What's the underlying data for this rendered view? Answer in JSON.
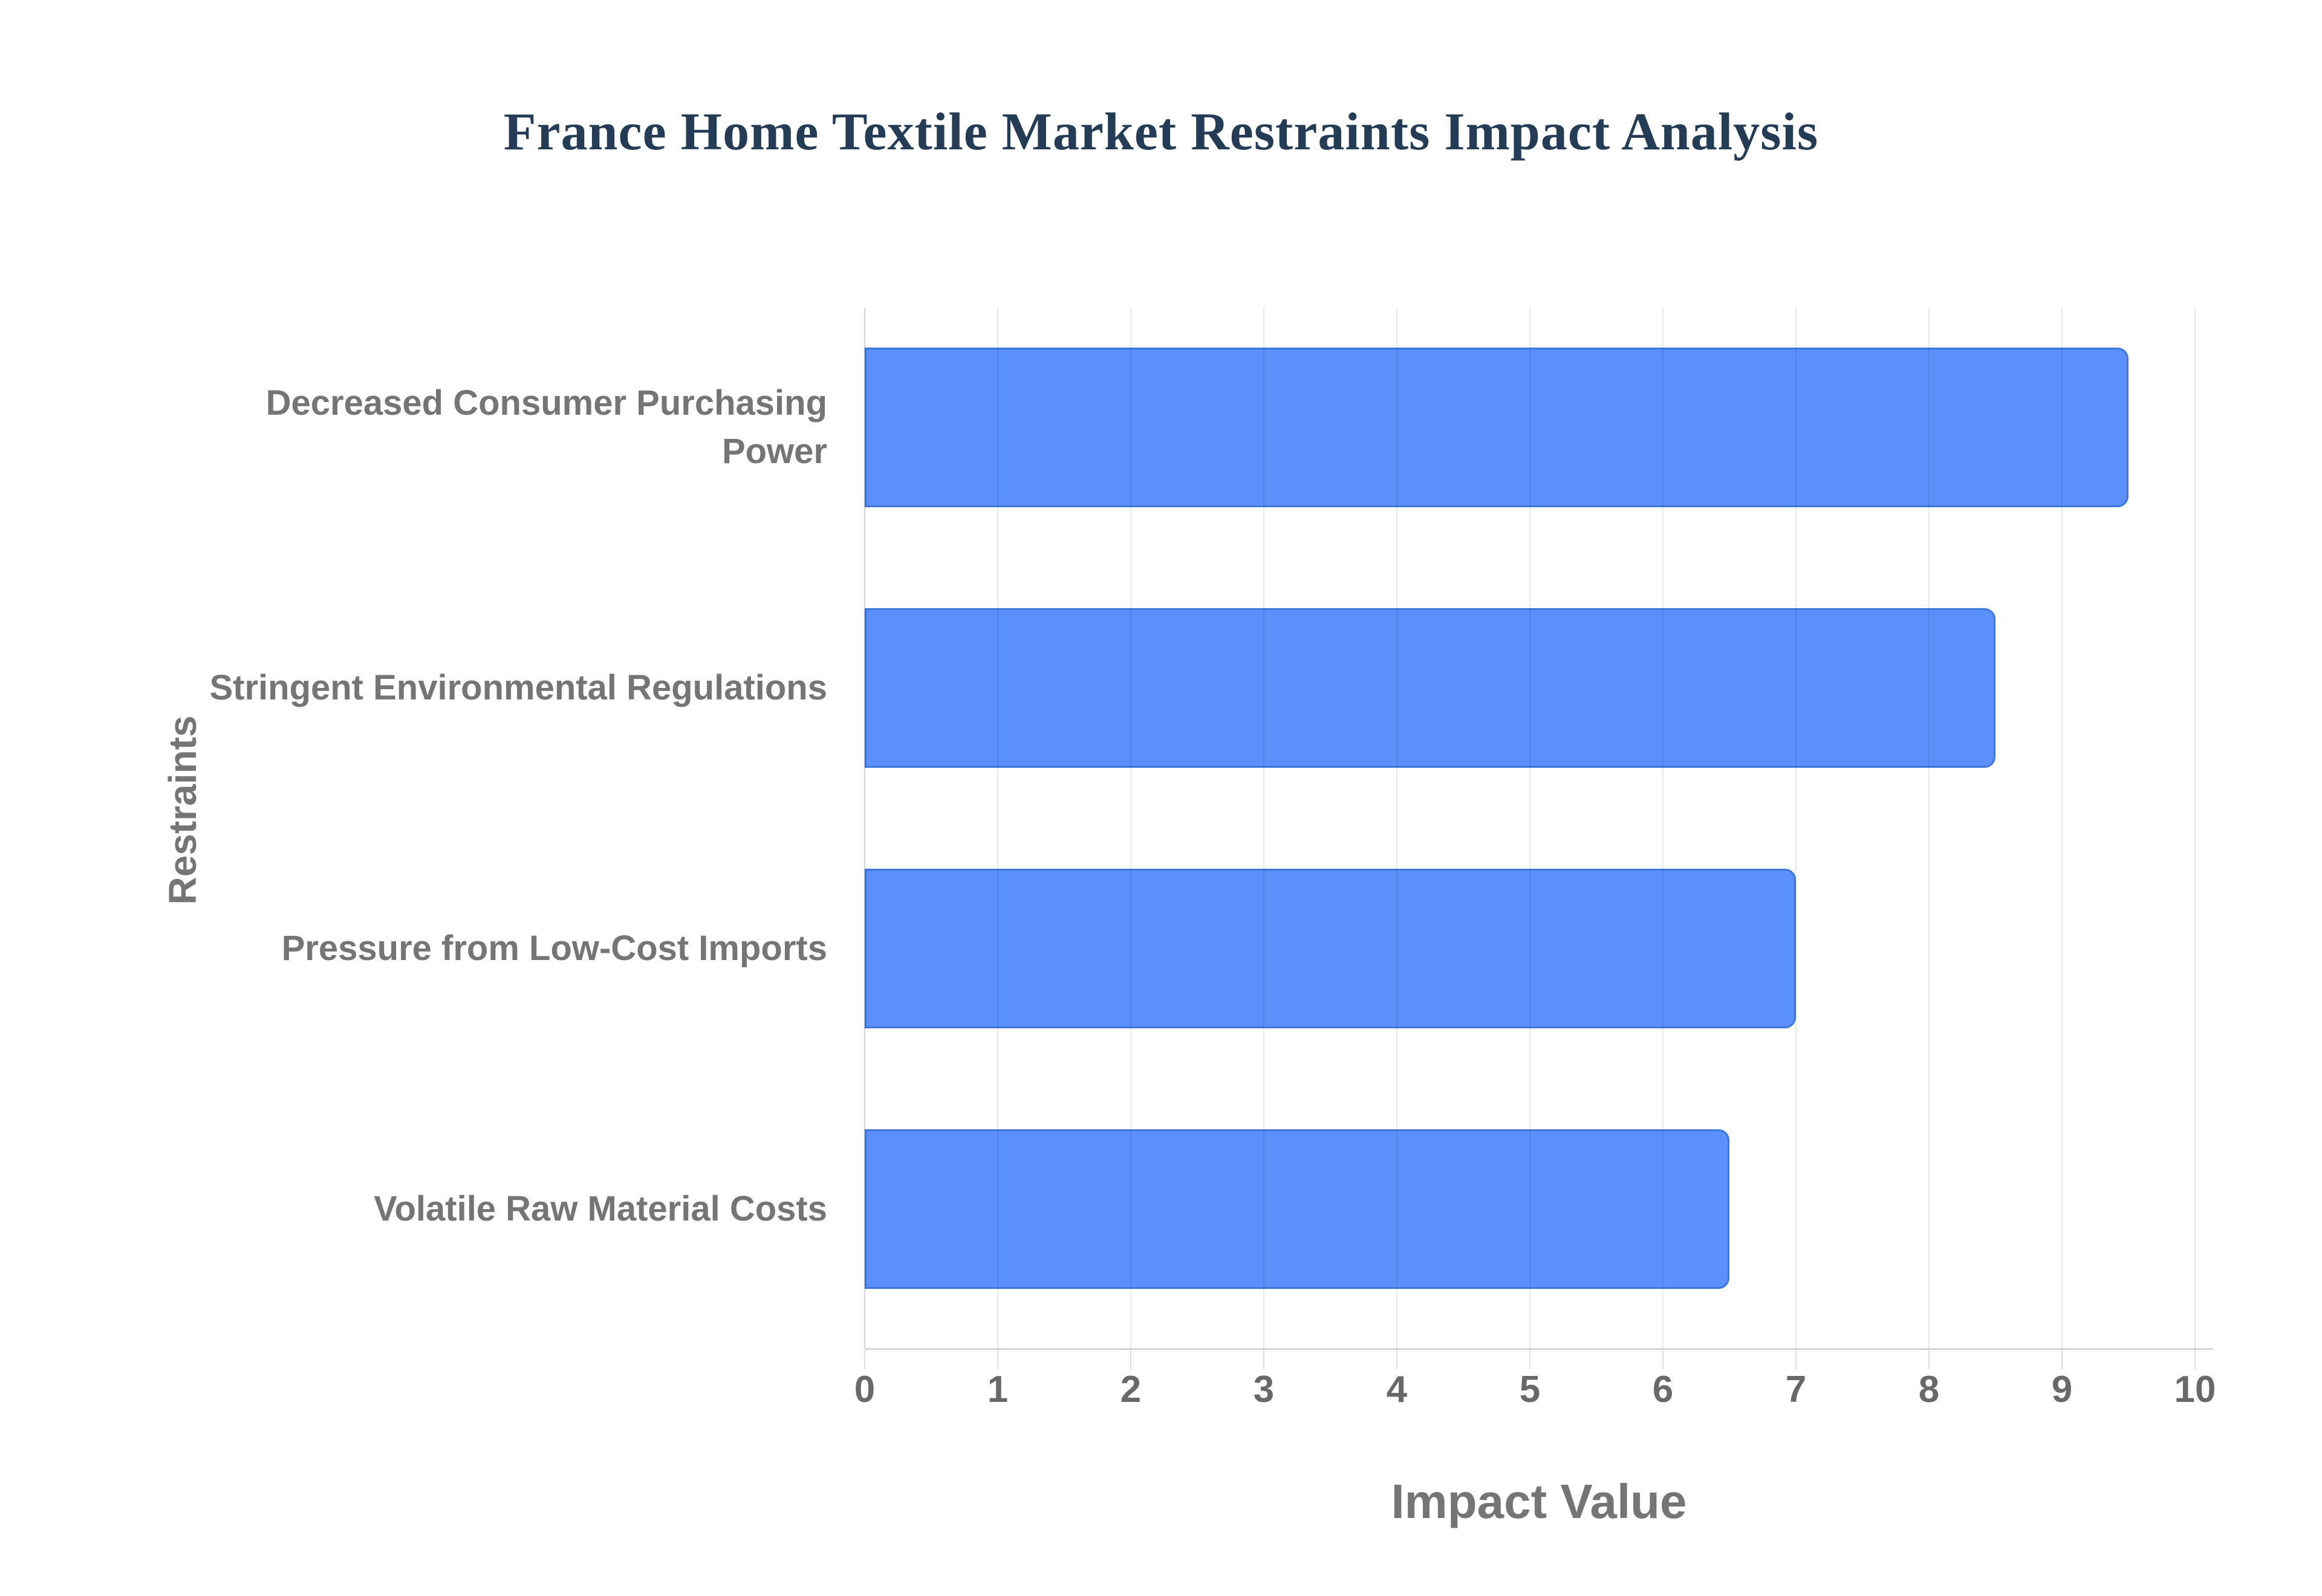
{
  "chart_data": {
    "type": "bar",
    "orientation": "horizontal",
    "title": "France Home Textile Market Restraints Impact Analysis",
    "xlabel": "Impact Value",
    "ylabel": "Restraints",
    "categories": [
      "Decreased Consumer Purchasing Power",
      "Stringent Environmental Regulations",
      "Pressure from Low-Cost Imports",
      "Volatile Raw Material Costs"
    ],
    "values": [
      9.5,
      8.5,
      7,
      6.5
    ],
    "xlim": [
      0,
      10
    ],
    "xticks": [
      0,
      1,
      2,
      3,
      4,
      5,
      6,
      7,
      8,
      9,
      10
    ],
    "grid": true,
    "legend_position": "none",
    "colors": {
      "bar_fill": "#5B8FF9",
      "bar_border": "#3D76DD",
      "title_text": "#253C56",
      "category_label_text": "#757575",
      "tick_label_text": "#696969",
      "axis_title_text": "#757575"
    }
  }
}
